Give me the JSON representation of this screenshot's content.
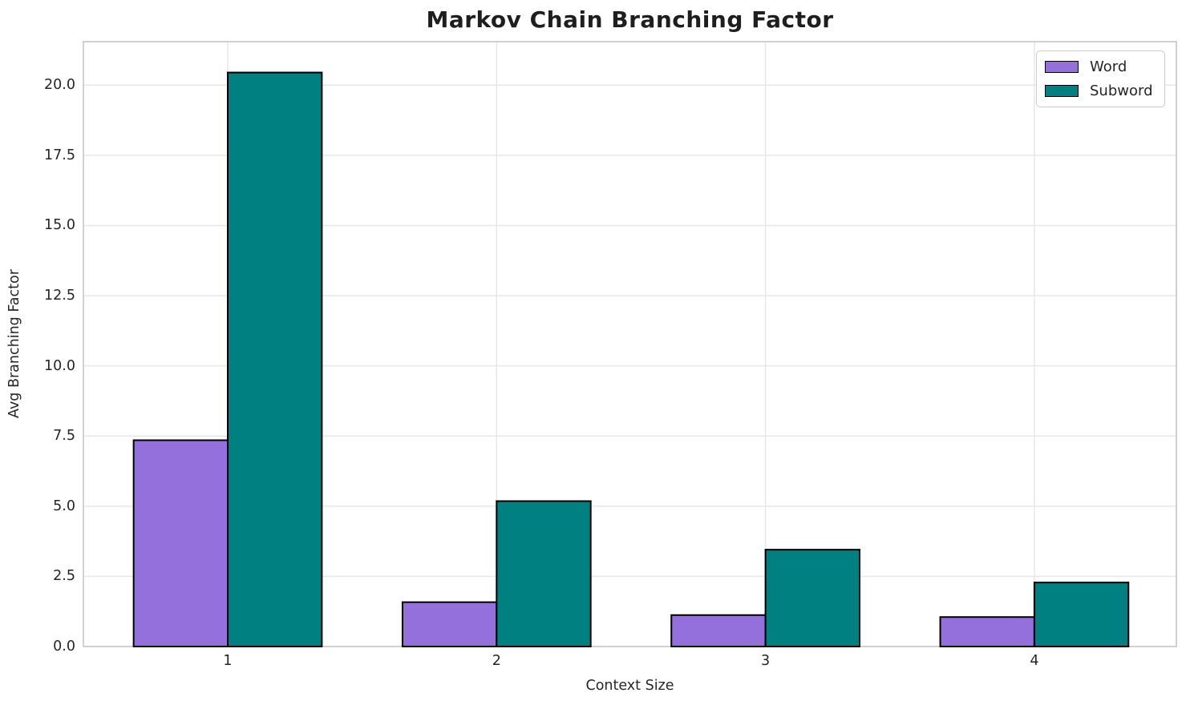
{
  "chart_data": {
    "type": "bar",
    "title": "Markov Chain Branching Factor",
    "xlabel": "Context Size",
    "ylabel": "Avg Branching Factor",
    "categories": [
      "1",
      "2",
      "3",
      "4"
    ],
    "series": [
      {
        "name": "Word",
        "color": "#9370DB",
        "values": [
          7.35,
          1.58,
          1.12,
          1.05
        ]
      },
      {
        "name": "Subword",
        "color": "#008080",
        "values": [
          20.45,
          5.18,
          3.45,
          2.28
        ]
      }
    ],
    "ylim": [
      0,
      21.55
    ],
    "yticks": [
      "0.0",
      "2.5",
      "5.0",
      "7.5",
      "10.0",
      "12.5",
      "15.0",
      "17.5",
      "20.0"
    ],
    "ytick_values": [
      0,
      2.5,
      5,
      7.5,
      10,
      12.5,
      15,
      17.5,
      20
    ],
    "grid": true,
    "legend_position": "upper right",
    "bar_width": 0.35,
    "bar_edge_color": "#000000",
    "grid_color": "#e7e7e7",
    "spine_color": "#d0d0d0",
    "text_color": "#262626"
  }
}
